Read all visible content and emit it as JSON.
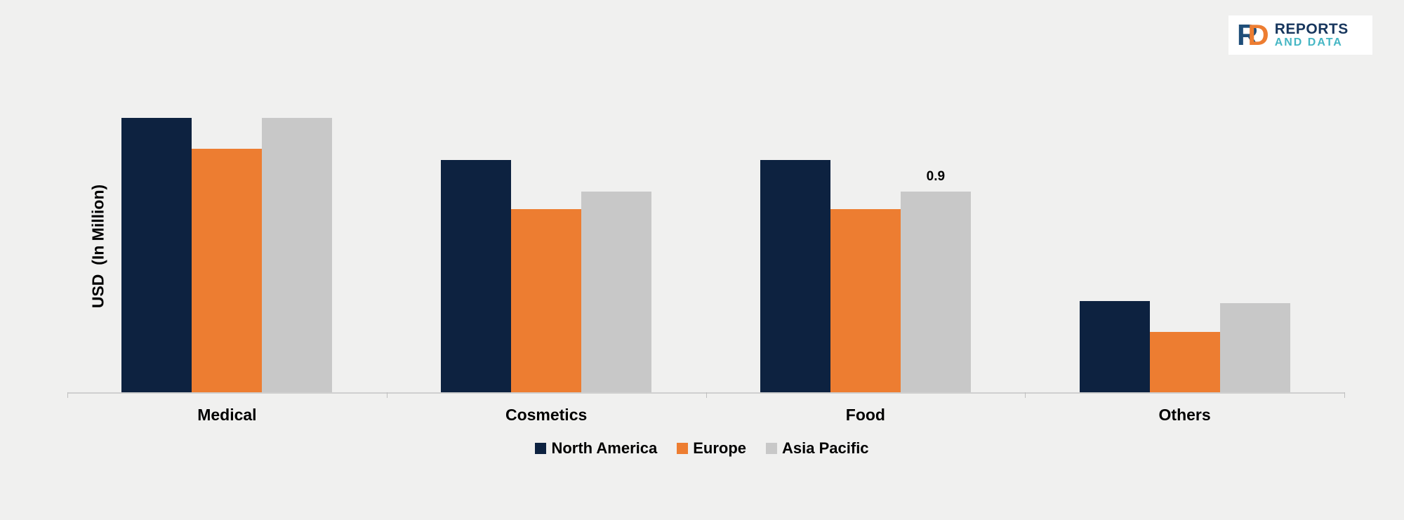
{
  "logo": {
    "mark_r": "R",
    "mark_d": "D",
    "line1": "REPORTS",
    "line2": "AND DATA"
  },
  "chart_data": {
    "type": "bar",
    "categories": [
      "Medical",
      "Cosmetics",
      "Food",
      "Others"
    ],
    "series": [
      {
        "name": "North America",
        "color": "#0d2240",
        "values": [
          1.23,
          1.04,
          1.04,
          0.41
        ]
      },
      {
        "name": "Europe",
        "color": "#ed7d31",
        "values": [
          1.09,
          0.82,
          0.82,
          0.27
        ]
      },
      {
        "name": "Asia Pacific",
        "color": "#c8c8c8",
        "values": [
          1.23,
          0.9,
          0.9,
          0.4
        ]
      }
    ],
    "title": "",
    "xlabel": "",
    "ylabel": "USD  (In Million)",
    "ylim": [
      0,
      1.3
    ],
    "grid": false,
    "legend_position": "bottom",
    "data_labels": [
      {
        "category": "Food",
        "series": "Asia Pacific",
        "text": "0.9"
      }
    ]
  }
}
